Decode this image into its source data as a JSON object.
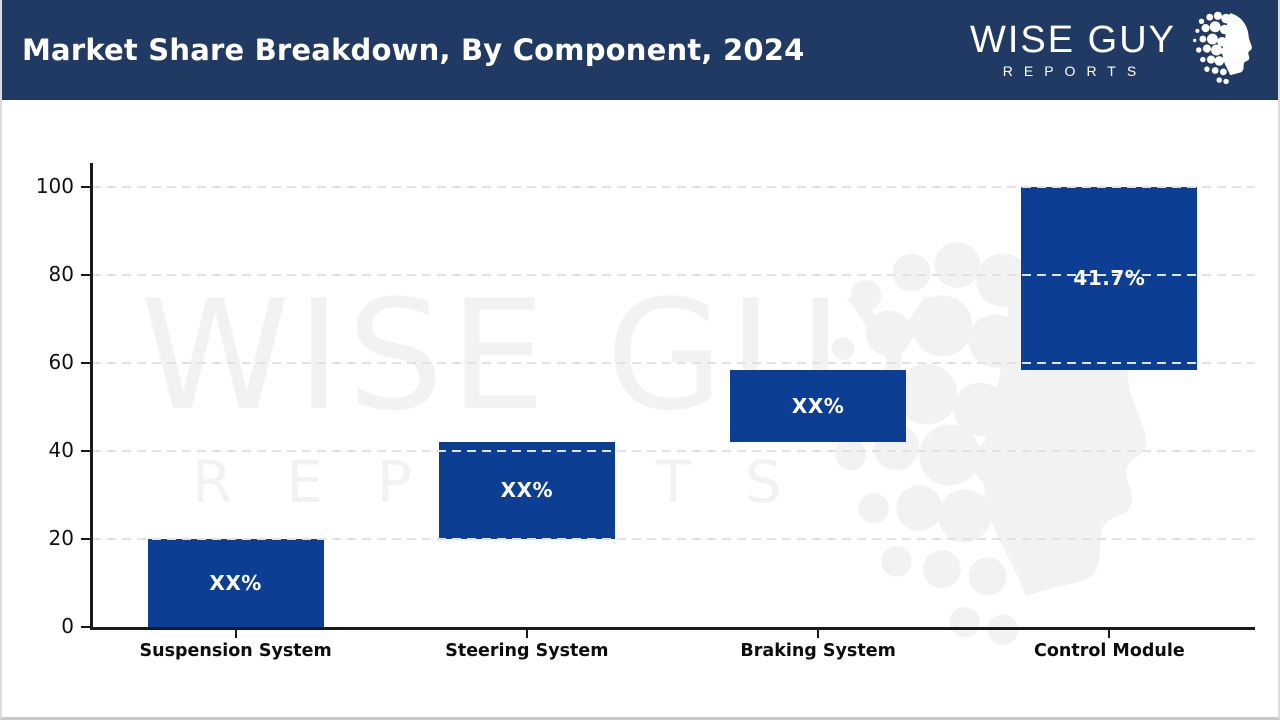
{
  "header": {
    "title": "Market Share Breakdown, By Component, 2024",
    "logo": {
      "wordmark": "WISE GUY",
      "subtitle": "REPORTS"
    }
  },
  "watermark": {
    "line1": "WISE GUY",
    "line2": "REPORTS"
  },
  "colors": {
    "header_bg": "#213a64",
    "bar_blue": "#0c3e94",
    "grid_gray": "#e2e2e2",
    "axis_black": "#1a1a1a",
    "watermark_gray": "#f2f2f2",
    "title_white": "#ffffff"
  },
  "chart_data": {
    "type": "bar",
    "subtype": "waterfall",
    "title": "Market Share Breakdown, By Component, 2024",
    "categories": [
      "Suspension System",
      "Steering System",
      "Braking System",
      "Control Module"
    ],
    "segments": [
      {
        "category": "Suspension System",
        "start": 0,
        "end": 20,
        "label": "XX%"
      },
      {
        "category": "Steering System",
        "start": 20,
        "end": 42,
        "label": "XX%"
      },
      {
        "category": "Braking System",
        "start": 42,
        "end": 58.3,
        "label": "XX%"
      },
      {
        "category": "Control Module",
        "start": 58.3,
        "end": 100,
        "label": "41.7%"
      }
    ],
    "yticks": [
      0,
      20,
      40,
      60,
      80,
      100
    ],
    "ylim": [
      0,
      105
    ],
    "xlabel": "",
    "ylabel": "",
    "grid": "dashed-horizontal-over-bars",
    "legend": "none"
  }
}
